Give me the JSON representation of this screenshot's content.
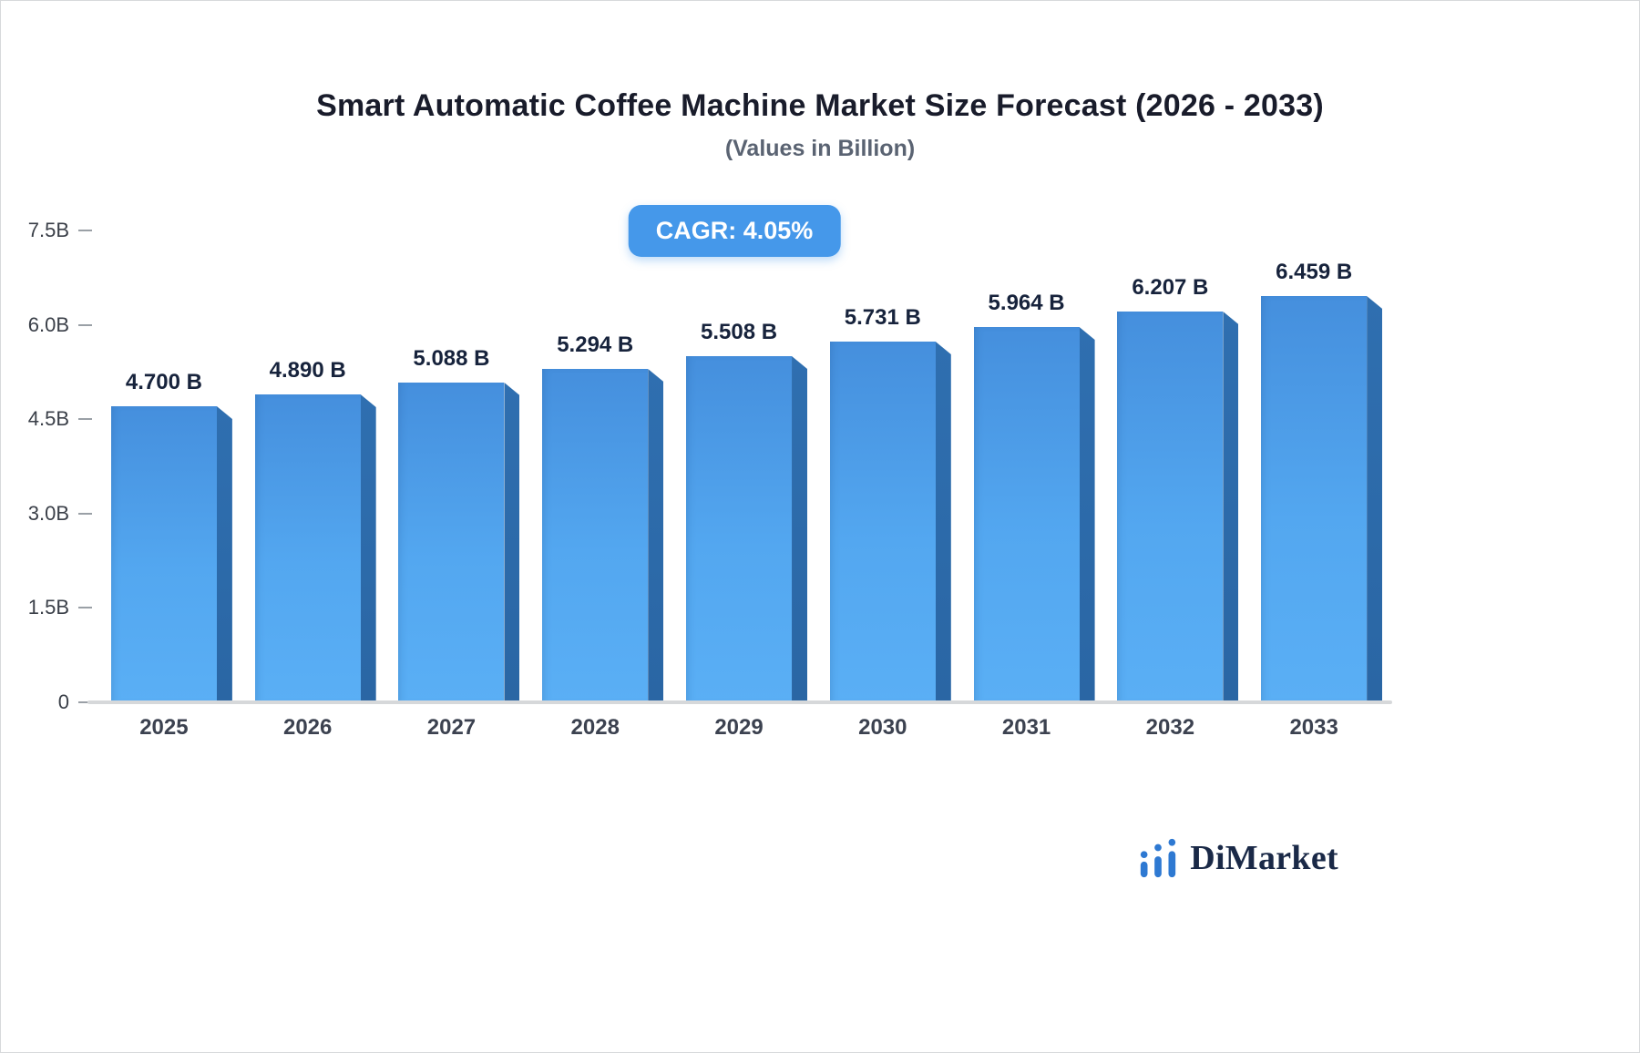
{
  "header": {
    "title": "Smart Automatic Coffee Machine Market Size Forecast (2026 - 2033)",
    "subtitle": "(Values in Billion)",
    "cagr_label": "CAGR: 4.05%"
  },
  "brand": {
    "name": "DiMarket",
    "icon": "bar-chart-dots-icon",
    "icon_color": "#2e79d2",
    "text_color": "#1a2947"
  },
  "colors": {
    "accent": "#4598ea",
    "bar_face_top": "#458fdd",
    "bar_face_bottom": "#5aaff5",
    "bar_side": "#2d6aa9",
    "axis_line": "#d6d8da",
    "tick_mark": "#9aa0a6"
  },
  "chart_data": {
    "type": "bar",
    "title": "Smart Automatic Coffee Machine Market Size Forecast (2026 - 2033)",
    "subtitle": "(Values in Billion)",
    "categories": [
      "2025",
      "2026",
      "2027",
      "2028",
      "2029",
      "2030",
      "2031",
      "2032",
      "2033"
    ],
    "values": [
      4.7,
      4.89,
      5.088,
      5.294,
      5.508,
      5.731,
      5.964,
      6.207,
      6.459
    ],
    "value_labels": [
      "4.700 B",
      "4.890 B",
      "5.088 B",
      "5.294 B",
      "5.508 B",
      "5.731 B",
      "5.964 B",
      "6.207 B",
      "6.459 B"
    ],
    "unit": "Billion",
    "cagr": "4.05%",
    "xlabel": "",
    "ylabel": "",
    "ylim": [
      0,
      7.5
    ],
    "yticks": [
      {
        "label": "7.5B",
        "value": 7.5
      },
      {
        "label": "6.0B",
        "value": 6.0
      },
      {
        "label": "4.5B",
        "value": 4.5
      },
      {
        "label": "3.0B",
        "value": 3.0
      },
      {
        "label": "1.5B",
        "value": 1.5
      },
      {
        "label": "0",
        "value": 0
      }
    ],
    "grid": false,
    "legend": false
  }
}
